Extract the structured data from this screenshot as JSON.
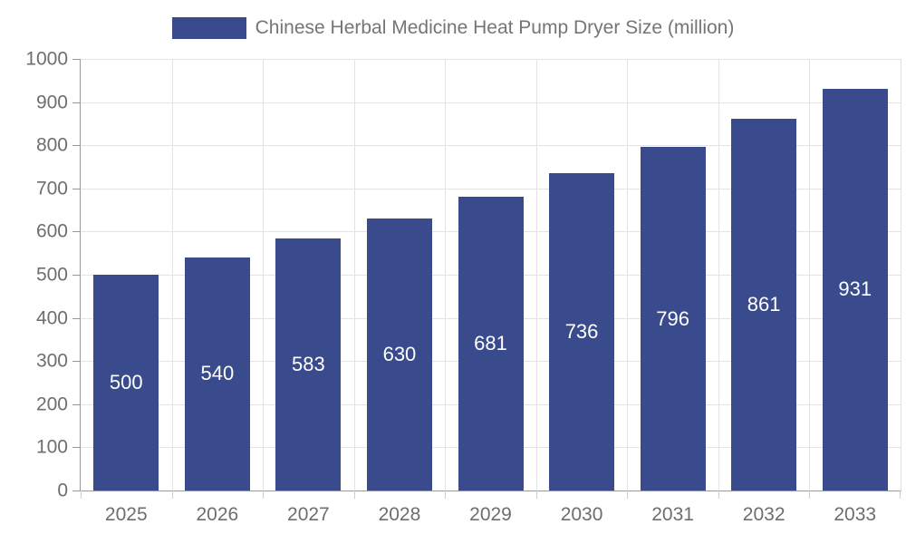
{
  "legend": {
    "label": "Chinese Herbal Medicine Heat Pump Dryer Size (million)"
  },
  "chart_data": {
    "type": "bar",
    "title": "Chinese Herbal Medicine Heat Pump Dryer Size (million)",
    "categories": [
      "2025",
      "2026",
      "2027",
      "2028",
      "2029",
      "2030",
      "2031",
      "2032",
      "2033"
    ],
    "values": [
      500,
      540,
      583,
      630,
      681,
      736,
      796,
      861,
      931
    ],
    "xlabel": "",
    "ylabel": "",
    "ylim": [
      0,
      1000
    ],
    "ytick_step": 100,
    "yticks": [
      0,
      100,
      200,
      300,
      400,
      500,
      600,
      700,
      800,
      900,
      1000
    ],
    "grid": true,
    "legend_position": "top-center",
    "bar_label_position": "inside-center",
    "colors": {
      "bar": "#394B8C",
      "bar_label": "#FFFFFF",
      "axis_text": "#6E6E6E",
      "legend_text": "#757575",
      "grid_line": "#E3E3E3",
      "axis_line": "#999999",
      "x_tick": "#CCCCCC",
      "background": "#FFFFFF"
    }
  }
}
